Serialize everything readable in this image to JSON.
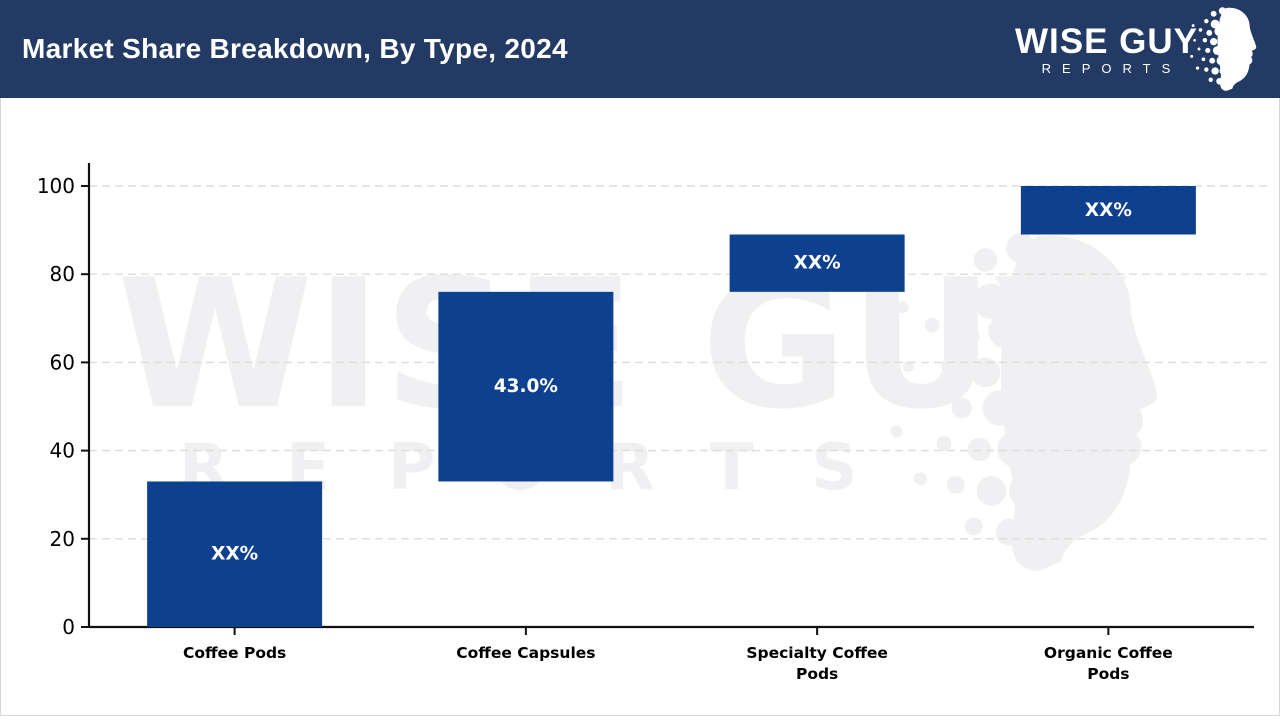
{
  "header": {
    "title": "Market Share Breakdown, By Type, 2024",
    "logo": {
      "primary": "WISE GUY",
      "secondary": "REPORTS"
    }
  },
  "watermark": {
    "primary": "WISE GUY",
    "secondary": "REPORTS"
  },
  "chart_data": {
    "type": "bar",
    "variant": "waterfall",
    "title": "Market Share Breakdown, By Type, 2024",
    "categories": [
      "Coffee Pods",
      "Coffee Capsules",
      "Specialty Coffee Pods",
      "Organic Coffee Pods"
    ],
    "bars": [
      {
        "category": "Coffee Pods",
        "label_lines": [
          "Coffee Pods"
        ],
        "start": 0,
        "end": 33,
        "value": 33,
        "display_label": "XX%"
      },
      {
        "category": "Coffee Capsules",
        "label_lines": [
          "Coffee Capsules"
        ],
        "start": 33,
        "end": 76,
        "value": 43,
        "display_label": "43.0%"
      },
      {
        "category": "Specialty Coffee Pods",
        "label_lines": [
          "Specialty Coffee",
          "Pods"
        ],
        "start": 76,
        "end": 89,
        "value": 13,
        "display_label": "XX%"
      },
      {
        "category": "Organic Coffee Pods",
        "label_lines": [
          "Organic Coffee",
          "Pods"
        ],
        "start": 89,
        "end": 100,
        "value": 11,
        "display_label": "XX%"
      }
    ],
    "xlabel": "",
    "ylabel": "",
    "ylim": [
      0,
      105
    ],
    "yticks": [
      0,
      20,
      40,
      60,
      80,
      100
    ],
    "grid": "horizontal-dashed",
    "legend": "none",
    "colors": {
      "bar": "#0e4090",
      "bar_label": "#ffffff",
      "axis": "#111111",
      "tick_label": "#000000",
      "grid": "#dcdcdc",
      "header_bg": "#223a64",
      "header_text": "#ffffff",
      "watermark": "#f0f0f2"
    }
  }
}
